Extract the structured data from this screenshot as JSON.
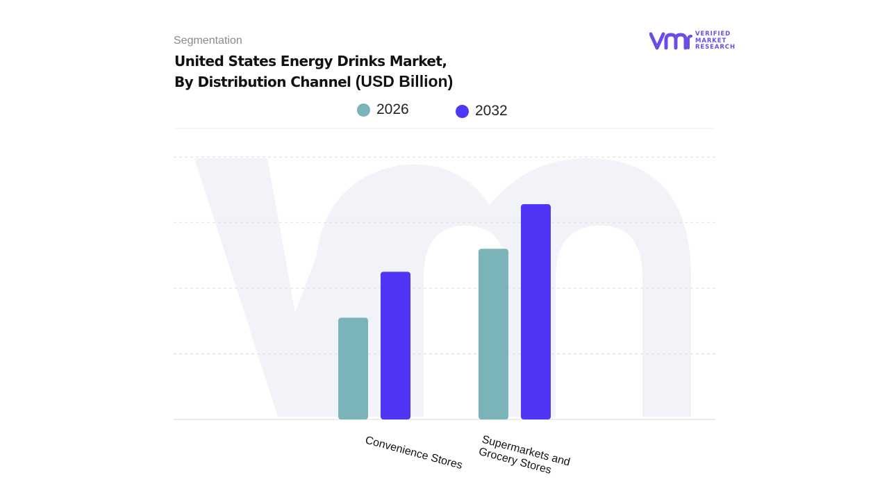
{
  "header": {
    "segment_label": "Segmentation",
    "title_line1": "United States Energy Drinks Market,",
    "title_line2": "By Distribution Channel",
    "title_unit": "(USD Billion)"
  },
  "logo": {
    "name": "vmr-logo",
    "line1": "VERIFIED",
    "line2": "MARKET",
    "line3": "RESEARCH",
    "color": "#6b4de6"
  },
  "colors": {
    "series_2026": "#7bb4b8",
    "series_2032": "#4f35f5",
    "grid": "#e3e3e3",
    "watermark": "#f2f3f8"
  },
  "chart_data": {
    "type": "bar",
    "title": "United States Energy Drinks Market, By Distribution Channel (USD Billion)",
    "categories": [
      [
        "Convenience Stores"
      ],
      [
        "Supermarkets and",
        "Grocery Stores"
      ]
    ],
    "series": [
      {
        "name": "2026",
        "values": [
          15.5,
          26.0
        ]
      },
      {
        "name": "2032",
        "values": [
          22.5,
          32.8
        ]
      }
    ],
    "ylim": [
      0,
      45
    ],
    "grid": true,
    "legend_position": "top-center",
    "xlabel": "",
    "ylabel": ""
  }
}
